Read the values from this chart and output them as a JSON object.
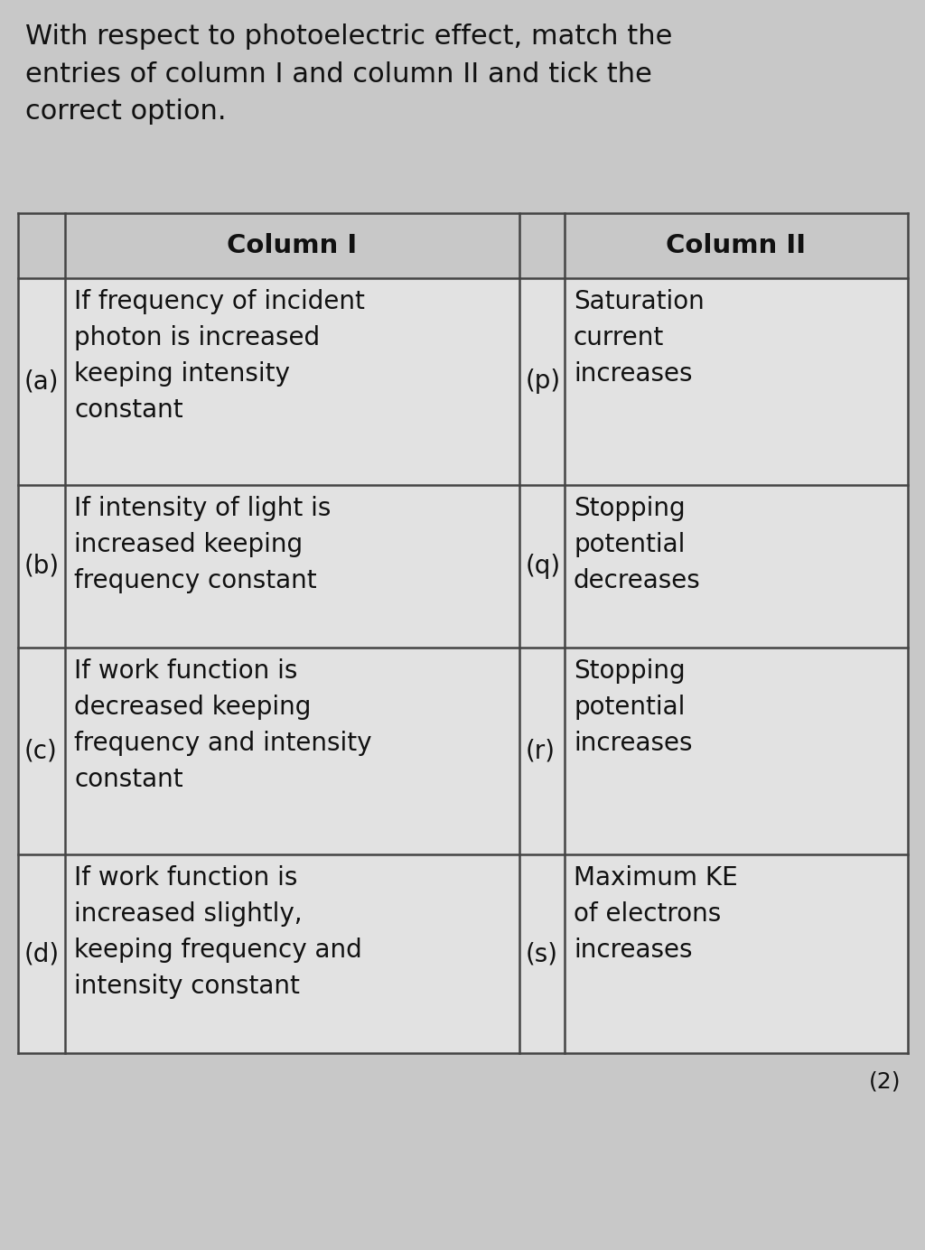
{
  "title_text": "With respect to photoelectric effect, match the\nentries of column I and column II and tick the\ncorrect option.",
  "header_col1": "Column I",
  "header_col2": "Column II",
  "rows": [
    {
      "label_left": "(a)",
      "text_left": "If frequency of incident\nphoton is increased\nkeeping intensity\nconstant",
      "label_right": "(p)",
      "text_right": "Saturation\ncurrent\nincreases"
    },
    {
      "label_left": "(b)",
      "text_left": "If intensity of light is\nincreased keeping\nfrequency constant",
      "label_right": "(q)",
      "text_right": "Stopping\npotential\ndecreases"
    },
    {
      "label_left": "(c)",
      "text_left": "If work function is\ndecreased keeping\nfrequency and intensity\nconstant",
      "label_right": "(r)",
      "text_right": "Stopping\npotential\nincreases"
    },
    {
      "label_left": "(d)",
      "text_left": "If work function is\nincreased slightly,\nkeeping frequency and\nintensity constant",
      "label_right": "(s)",
      "text_right": "Maximum KE\nof electrons\nincreases"
    }
  ],
  "footer_text": "(2)",
  "bg_color": "#c8c8c8",
  "table_bg": "#e2e2e2",
  "header_bg": "#c8c8c8",
  "border_color": "#444444",
  "text_color": "#111111",
  "font_size_title": 22,
  "font_size_header": 21,
  "font_size_cell": 20,
  "font_size_footer": 18,
  "fig_width": 10.24,
  "fig_height": 13.84
}
